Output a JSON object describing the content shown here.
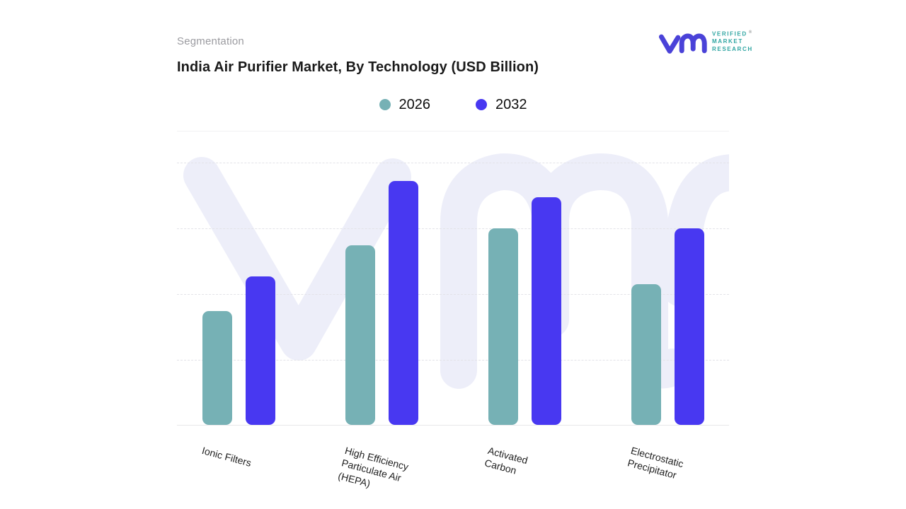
{
  "page": {
    "background": "#ffffff"
  },
  "header": {
    "eyebrow": "Segmentation",
    "title": "India Air Purifier Market, By Technology (USD Billion)"
  },
  "logo": {
    "lines": [
      "VERIFIED",
      "MARKET",
      "RESEARCH"
    ],
    "registered_mark": "®",
    "monogram": "vm",
    "monogram_color": "#4a42d8",
    "text_color": "#2fa5a2"
  },
  "legend": [
    {
      "label": "2026",
      "color": "#76b1b5"
    },
    {
      "label": "2032",
      "color": "#4838f1"
    }
  ],
  "chart_data": {
    "type": "bar",
    "title": "India Air Purifier Market, By Technology (USD Billion)",
    "unit": "USD Billion",
    "categories": [
      "Ionic Filters",
      "High Efficiency Particulate Air (HEPA)",
      "Activated Carbon",
      "Electrostatic Precipitator"
    ],
    "category_display_lines": [
      [
        "Ionic Filters"
      ],
      [
        "High Efficiency",
        "Particulate Air",
        "(HEPA)"
      ],
      [
        "Activated",
        "Carbon"
      ],
      [
        "Electrostatic",
        "Precipitator"
      ]
    ],
    "series": [
      {
        "name": "2026",
        "color": "#76b1b5",
        "values": [
          1.73,
          2.72,
          2.98,
          2.14
        ]
      },
      {
        "name": "2032",
        "color": "#4838f1",
        "values": [
          2.25,
          3.7,
          3.46,
          2.98
        ]
      }
    ],
    "xlabel": "",
    "ylabel": "",
    "y_axis": {
      "tick_labels_visible": false,
      "ylim": [
        0,
        4.5
      ],
      "gridline_count": 4,
      "grid_style": "dashed",
      "note": "y axis has no numeric tick labels; values estimated in gridline units from bar heights"
    },
    "legend_position": "top-center",
    "watermark": "vm monogram, very light lavender, behind bars"
  },
  "colors": {
    "gridline": "#e3e3e8",
    "baseline": "#e7e7ea",
    "watermark": "#edeef9",
    "title_text": "#1a1a1a",
    "eyebrow_text": "#9b9ba0",
    "axis_label_text": "#212121"
  }
}
